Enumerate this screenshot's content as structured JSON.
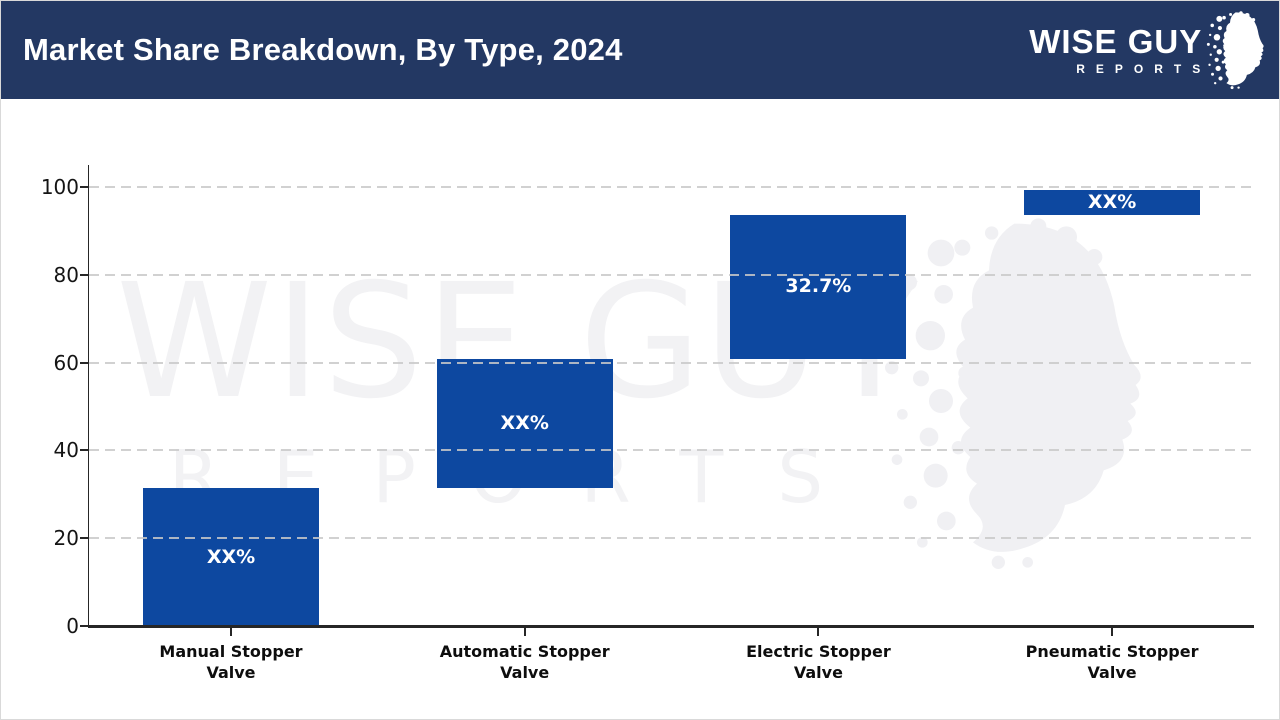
{
  "header": {
    "title": "Market Share Breakdown, By Type, 2024",
    "logo": {
      "line1": "WISE GUY",
      "line2": "REPORTS"
    }
  },
  "watermark": {
    "line1": "WISE GUY",
    "line2": "REPORTS"
  },
  "chart_data": {
    "type": "waterfall",
    "title": "Market Share Breakdown, By Type, 2024",
    "categories": [
      "Manual Stopper Valve",
      "Automatic Stopper Valve",
      "Electric Stopper Valve",
      "Pneumatic Stopper Valve"
    ],
    "x_tick_labels": [
      [
        "Manual Stopper",
        "Valve"
      ],
      [
        "Automatic Stopper",
        "Valve"
      ],
      [
        "Electric Stopper",
        "Valve"
      ],
      [
        "Pneumatic Stopper",
        "Valve"
      ]
    ],
    "segments": [
      {
        "category": "Manual Stopper Valve",
        "start": 0,
        "end": 31.4,
        "label": "XX%"
      },
      {
        "category": "Automatic Stopper Valve",
        "start": 31.4,
        "end": 60.9,
        "label": "XX%"
      },
      {
        "category": "Electric Stopper Valve",
        "start": 60.9,
        "end": 93.6,
        "label": "32.7%"
      },
      {
        "category": "Pneumatic Stopper Valve",
        "start": 93.6,
        "end": 99.3,
        "label": "XX%"
      }
    ],
    "y_ticks": [
      0,
      20,
      40,
      60,
      80,
      100
    ],
    "ylim": [
      0,
      105
    ],
    "xlabel": "",
    "ylabel": "",
    "legend": null,
    "grid": {
      "axis": "y",
      "style": "dashed",
      "above_bars": true
    },
    "bar_color": "#0d48a0",
    "bar_label_color": "#ffffff",
    "grid_color": "#c9c9c9",
    "axis_color": "#262626"
  }
}
